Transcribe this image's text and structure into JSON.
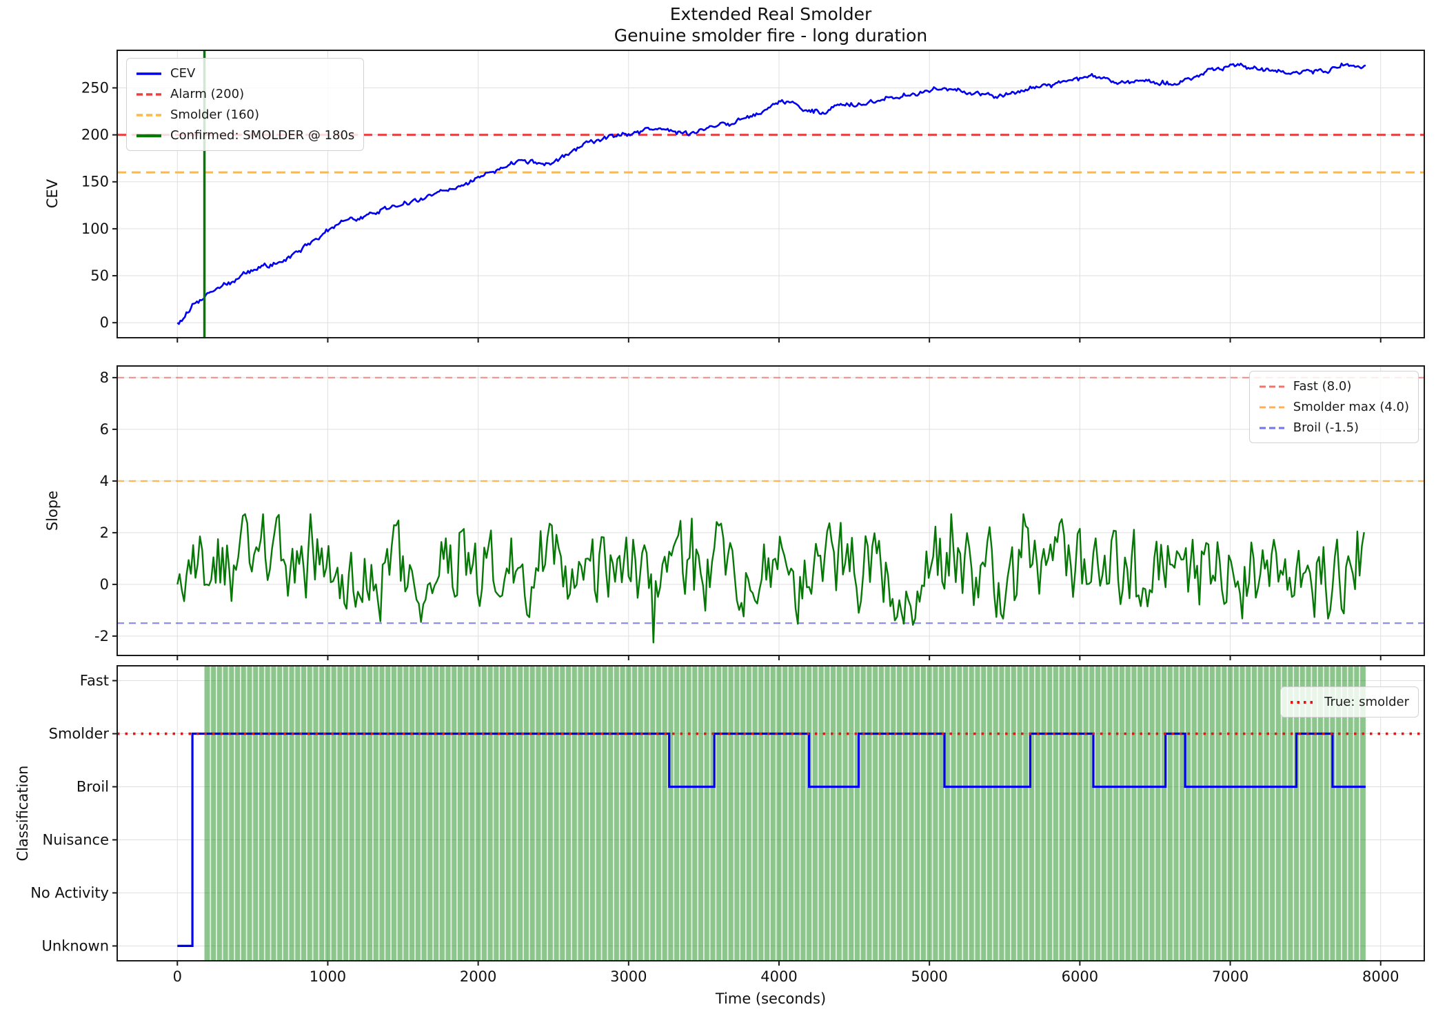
{
  "figure": {
    "title": "Extended Real Smolder",
    "subtitle": "Genuine smolder fire - long duration"
  },
  "chart_data": [
    {
      "id": "cev",
      "type": "line",
      "ylabel": "CEV",
      "xlim": [
        -400,
        8290
      ],
      "ylim": [
        -16,
        290
      ],
      "yticks": [
        0,
        50,
        100,
        150,
        200,
        250
      ],
      "grid": true,
      "legend_position": "upper-left",
      "series": [
        {
          "name": "CEV",
          "color": "#0000ee",
          "anchors": [
            [
              0,
              0
            ],
            [
              100,
              17
            ],
            [
              200,
              30
            ],
            [
              300,
              37
            ],
            [
              400,
              45
            ],
            [
              500,
              55
            ],
            [
              600,
              61
            ],
            [
              700,
              65
            ],
            [
              800,
              78
            ],
            [
              900,
              91
            ],
            [
              1000,
              100
            ],
            [
              1100,
              106
            ],
            [
              1200,
              112
            ],
            [
              1300,
              120
            ],
            [
              1400,
              125
            ],
            [
              1500,
              127
            ],
            [
              1600,
              130
            ],
            [
              1700,
              134
            ],
            [
              1800,
              143
            ],
            [
              1900,
              150
            ],
            [
              2000,
              157
            ],
            [
              2100,
              165
            ],
            [
              2200,
              169
            ],
            [
              2300,
              172
            ],
            [
              2400,
              171
            ],
            [
              2500,
              174
            ],
            [
              2600,
              178
            ],
            [
              2700,
              186
            ],
            [
              2800,
              193
            ],
            [
              2900,
              197
            ],
            [
              3000,
              200
            ],
            [
              3100,
              204
            ],
            [
              3200,
              207
            ],
            [
              3300,
              203
            ],
            [
              3400,
              199
            ],
            [
              3500,
              204
            ],
            [
              3600,
              209
            ],
            [
              3700,
              214
            ],
            [
              3800,
              220
            ],
            [
              3900,
              224
            ],
            [
              4000,
              229
            ],
            [
              4100,
              232
            ],
            [
              4200,
              228
            ],
            [
              4300,
              226
            ],
            [
              4400,
              229
            ],
            [
              4500,
              231
            ],
            [
              4600,
              235
            ],
            [
              4700,
              239
            ],
            [
              4800,
              243
            ],
            [
              4900,
              246
            ],
            [
              5000,
              249
            ],
            [
              5100,
              252
            ],
            [
              5200,
              248
            ],
            [
              5300,
              245
            ],
            [
              5400,
              246
            ],
            [
              5500,
              247
            ],
            [
              5600,
              249
            ],
            [
              5700,
              251
            ],
            [
              5800,
              253
            ],
            [
              5900,
              257
            ],
            [
              6000,
              260
            ],
            [
              6100,
              262
            ],
            [
              6200,
              258
            ],
            [
              6300,
              257
            ],
            [
              6400,
              258
            ],
            [
              6500,
              256
            ],
            [
              6600,
              255
            ],
            [
              6700,
              260
            ],
            [
              6800,
              265
            ],
            [
              6900,
              269
            ],
            [
              7000,
              272
            ],
            [
              7100,
              271
            ],
            [
              7200,
              269
            ],
            [
              7300,
              268
            ],
            [
              7400,
              265
            ],
            [
              7500,
              263
            ],
            [
              7600,
              268
            ],
            [
              7700,
              272
            ],
            [
              7800,
              274
            ],
            [
              7900,
              274
            ]
          ],
          "noise": {
            "seed": 12345,
            "step": 10,
            "walk": 0.86,
            "walk_amp": 4.0,
            "walk_scale": 0.9,
            "jitter": 2.5
          }
        }
      ],
      "thresholds": [
        {
          "label": "Alarm (200)",
          "value": 200,
          "color": "#e84040",
          "dash": [
            13,
            8
          ],
          "width": 3
        },
        {
          "label": "Smolder (160)",
          "value": 160,
          "color": "#ffb845",
          "dash": [
            13,
            8
          ],
          "width": 3
        }
      ],
      "vline": {
        "label": "Confirmed: SMOLDER @ 180s",
        "value": 180,
        "color": "#067806",
        "width": 3.5
      }
    },
    {
      "id": "slope",
      "type": "line",
      "ylabel": "Slope",
      "ylim": [
        -2.75,
        8.45
      ],
      "yticks": [
        -2,
        0,
        2,
        4,
        6,
        8
      ],
      "grid": true,
      "legend_position": "upper-right",
      "series": [
        {
          "name": "Slope",
          "color": "#067806",
          "start_value": 0,
          "mean": 0.55,
          "min": -2.25,
          "max": 2.72,
          "noise": {
            "seed": 777,
            "step": 15,
            "walk": 0.5,
            "walk_amp": 2.9,
            "dip_prob": 0.025,
            "dip": 1.5,
            "spike_prob": 0.02,
            "spike": 1.2
          }
        }
      ],
      "thresholds": [
        {
          "label": "Fast (8.0)",
          "value": 8.0,
          "color": "rgba(240,80,70,0.55)",
          "dash": [
            10,
            7
          ],
          "width": 2.2
        },
        {
          "label": "Smolder max (4.0)",
          "value": 4.0,
          "color": "rgba(255,167,56,0.8)",
          "dash": [
            10,
            7
          ],
          "width": 2.2
        },
        {
          "label": "Broil (-1.5)",
          "value": -1.5,
          "color": "rgba(80,80,235,0.65)",
          "dash": [
            10,
            7
          ],
          "width": 2.2
        }
      ]
    },
    {
      "id": "classification",
      "type": "step",
      "ylabel": "Classification",
      "xlabel": "Time (seconds)",
      "xticks": [
        0,
        1000,
        2000,
        3000,
        4000,
        5000,
        6000,
        7000,
        8000
      ],
      "categories": [
        "Fast",
        "Smolder",
        "Broil",
        "Nuisance",
        "No Activity",
        "Unknown"
      ],
      "series_color": "#0000ee",
      "legend_position": "upper-right",
      "segments": [
        {
          "start": 0,
          "end": 100,
          "label": "Unknown"
        },
        {
          "start": 100,
          "end": 3270,
          "label": "Smolder"
        },
        {
          "start": 3270,
          "end": 3570,
          "label": "Broil"
        },
        {
          "start": 3570,
          "end": 4200,
          "label": "Smolder"
        },
        {
          "start": 4200,
          "end": 4530,
          "label": "Broil"
        },
        {
          "start": 4530,
          "end": 5100,
          "label": "Smolder"
        },
        {
          "start": 5100,
          "end": 5670,
          "label": "Broil"
        },
        {
          "start": 5670,
          "end": 6090,
          "label": "Smolder"
        },
        {
          "start": 6090,
          "end": 6570,
          "label": "Broil"
        },
        {
          "start": 6570,
          "end": 6700,
          "label": "Smolder"
        },
        {
          "start": 6700,
          "end": 7440,
          "label": "Broil"
        },
        {
          "start": 7440,
          "end": 7680,
          "label": "Smolder"
        },
        {
          "start": 7680,
          "end": 7900,
          "label": "Broil"
        }
      ],
      "true_line": {
        "label": "True: smolder",
        "category": "Smolder",
        "color": "#ee1111"
      },
      "span": {
        "start": 180,
        "end": 7900,
        "color": "rgba(0,128,0,0.45)",
        "stripe_step": 40
      }
    }
  ]
}
